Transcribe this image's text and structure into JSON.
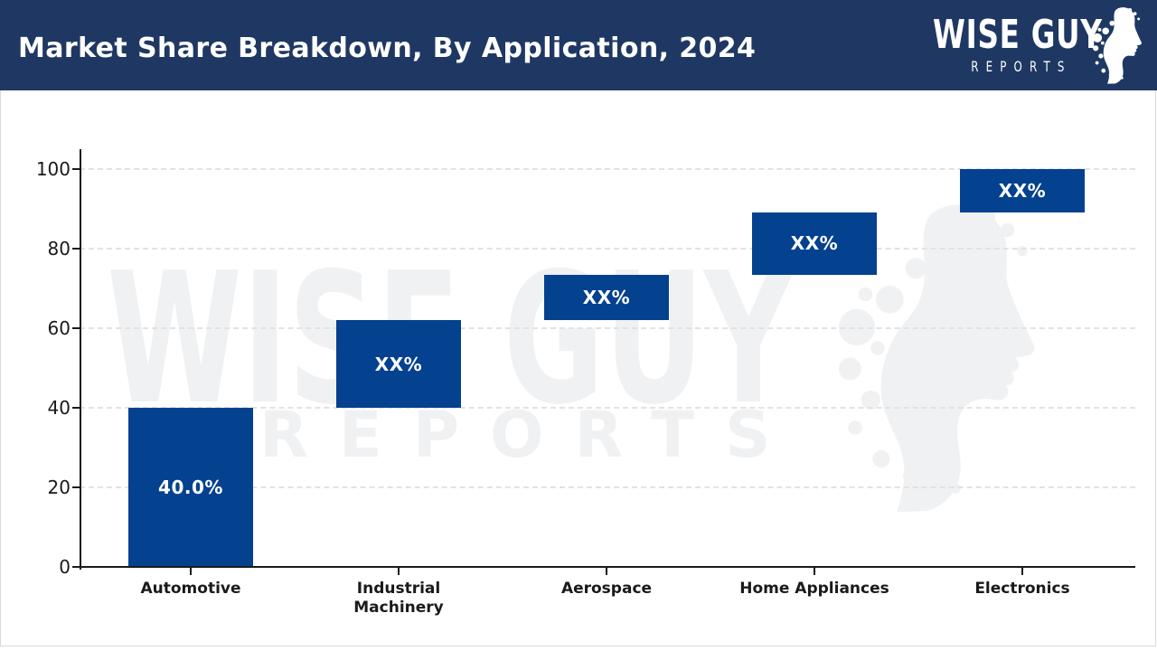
{
  "header": {
    "title": "Market Share Breakdown, By Application, 2024",
    "logo": {
      "name": "WISE GUY",
      "sub": "REPORTS",
      "face_icon": "dotted-face-profile-icon"
    }
  },
  "watermark": {
    "line1": "WISE GUY",
    "line2": "REPORTS",
    "face_icon": "dotted-face-profile-icon"
  },
  "colors": {
    "header_bg": "#1f3863",
    "bar": "#04418f",
    "bar_label": "#ffffff",
    "watermark": "#f0f1f3",
    "gridline": "#e2e2e2",
    "axis": "#1a1a1a",
    "page_border": "#d9d9d9"
  },
  "chart_data": {
    "type": "bar",
    "subtype": "waterfall",
    "title": "Market Share Breakdown, By Application, 2024",
    "categories": [
      "Automotive",
      "Industrial Machinery",
      "Aerospace",
      "Home Appliances",
      "Electronics"
    ],
    "tick_labels": [
      "Automotive",
      "Industrial\nMachinery",
      "Aerospace",
      "Home Appliances",
      "Electronics"
    ],
    "segments": [
      {
        "category": "Automotive",
        "start": 0,
        "end": 40,
        "value": 40.0,
        "value_label": "40.0%"
      },
      {
        "category": "Industrial Machinery",
        "start": 40,
        "end": 62,
        "value": 22.0,
        "value_label": "XX%"
      },
      {
        "category": "Aerospace",
        "start": 62,
        "end": 73.5,
        "value": 11.5,
        "value_label": "XX%"
      },
      {
        "category": "Home Appliances",
        "start": 73.5,
        "end": 89,
        "value": 15.5,
        "value_label": "XX%"
      },
      {
        "category": "Electronics",
        "start": 89,
        "end": 100,
        "value": 11.0,
        "value_label": "XX%"
      }
    ],
    "y_ticks": [
      0,
      20,
      40,
      60,
      80,
      100
    ],
    "ylim": [
      0,
      105
    ],
    "xlabel": "",
    "ylabel": "",
    "grid": "horizontal-dashed",
    "legend": "none"
  }
}
